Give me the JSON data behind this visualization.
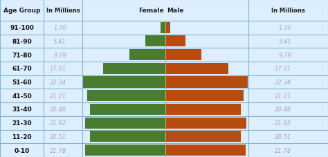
{
  "age_groups": [
    "91-100",
    "81-90",
    "71-80",
    "61-70",
    "51-60",
    "41-50",
    "31-40",
    "21-30",
    "11-20",
    "0-10"
  ],
  "female_values": [
    1.3,
    5.41,
    9.79,
    17.01,
    22.34,
    21.21,
    20.48,
    21.92,
    20.51,
    21.78
  ],
  "male_values": [
    1.3,
    5.41,
    9.79,
    17.01,
    22.34,
    21.21,
    20.48,
    21.92,
    20.51,
    21.78
  ],
  "female_color": "#4a7c2f",
  "male_color": "#b84c10",
  "bg_color": "#cde4f0",
  "cell_bg": "#ddeeff",
  "border_color": "#85b5cc",
  "header_text_color": "#222222",
  "value_text_color": "#aaaaaa",
  "age_text_color": "#111111",
  "col1_label": "Age Group",
  "col2_label": "In Millions",
  "col_female_label": "Female",
  "col_male_label": "Male",
  "col_right_label": "In Millions",
  "max_val": 22.5,
  "figsize": [
    4.74,
    2.28
  ],
  "dpi": 100
}
